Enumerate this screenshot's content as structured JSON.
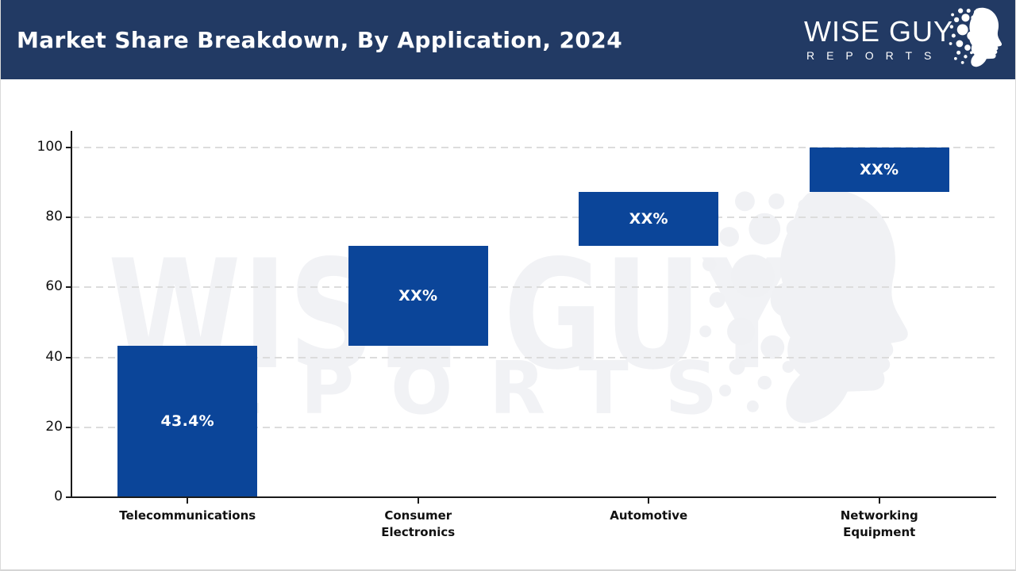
{
  "header": {
    "title": "Market Share Breakdown, By Application, 2024",
    "logo_line1": "WISE GUY",
    "logo_line2": "REPORTS"
  },
  "watermark": {
    "line1": "WISE GUY",
    "line2": "REPORTS"
  },
  "colors": {
    "header_bg": "#223A64",
    "bar": "#0B4599",
    "bar_label": "#FFFFFF",
    "grid": "#DCDCDC",
    "axis": "#1A1A1A",
    "watermark": "#F1F2F5"
  },
  "chart_data": {
    "type": "bar",
    "subtype": "waterfall",
    "title": "Market Share Breakdown, By Application, 2024",
    "unit": "%",
    "categories": [
      "Telecommunications",
      "Consumer Electronics",
      "Automotive",
      "Networking Equipment"
    ],
    "category_label_lines": [
      [
        "Telecommunications"
      ],
      [
        "Consumer",
        "Electronics"
      ],
      [
        "Automotive"
      ],
      [
        "Networking",
        "Equipment"
      ]
    ],
    "segments": [
      {
        "category": "Telecommunications",
        "start": 0,
        "end": 43.4,
        "value": 43.4,
        "label": "43.4%"
      },
      {
        "category": "Consumer Electronics",
        "start": 43.4,
        "end": 71.9,
        "value": 28.5,
        "label": "XX%"
      },
      {
        "category": "Automotive",
        "start": 71.9,
        "end": 87.4,
        "value": 15.5,
        "label": "XX%"
      },
      {
        "category": "Networking Equipment",
        "start": 87.4,
        "end": 100,
        "value": 12.6,
        "label": "XX%"
      }
    ],
    "ylim": [
      0,
      100
    ],
    "yticks": [
      0,
      20,
      40,
      60,
      80,
      100
    ],
    "xlabel": "",
    "ylabel": "",
    "grid": "dashed-horizontal",
    "legend": null
  }
}
